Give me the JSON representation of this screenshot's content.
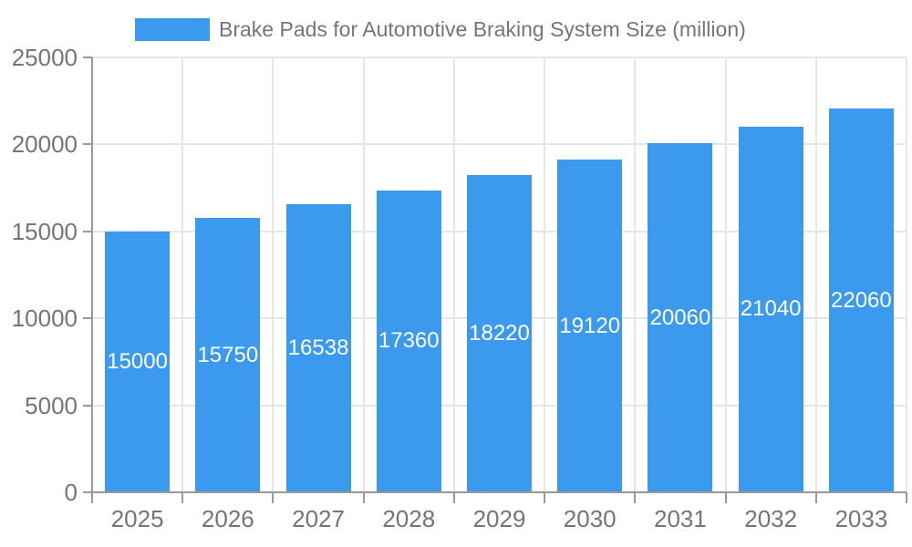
{
  "legend": {
    "label": "Brake Pads for Automotive Braking System Size (million)"
  },
  "chart_data": {
    "type": "bar",
    "title": "Brake Pads for Automotive Braking System Size (million)",
    "categories": [
      "2025",
      "2026",
      "2027",
      "2028",
      "2029",
      "2030",
      "2031",
      "2032",
      "2033"
    ],
    "values": [
      15000,
      15750,
      16538,
      17360,
      18220,
      19120,
      20060,
      21040,
      22060
    ],
    "bar_labels": [
      "15000",
      "15750",
      "16538",
      "17360",
      "18220",
      "19120",
      "20060",
      "21040",
      "22060"
    ],
    "xlabel": "",
    "ylabel": "",
    "ylim": [
      0,
      25000
    ],
    "yticks": [
      0,
      5000,
      10000,
      15000,
      20000,
      25000
    ],
    "grid": true,
    "legend_position": "top",
    "bar_label_position": "center-inside",
    "colors": {
      "bar": "#3b99ee",
      "bar_label_text": "#ffffff",
      "axis_line": "#999999",
      "grid_line": "#e6e6e6",
      "tick_text": "#757575",
      "legend_text": "#757575",
      "background": "#ffffff"
    }
  }
}
